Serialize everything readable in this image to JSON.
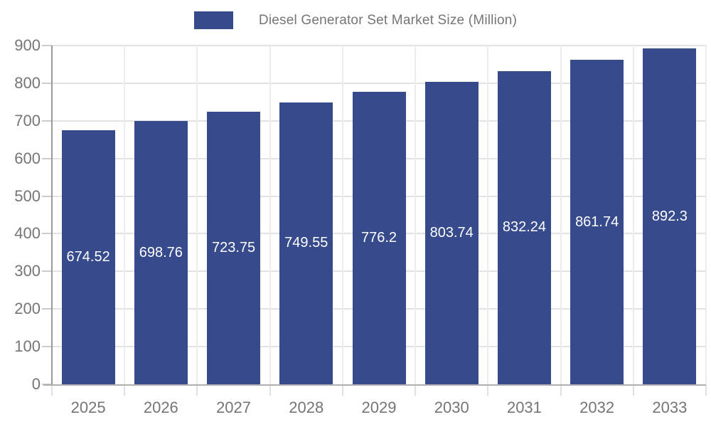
{
  "legend": {
    "label": "Diesel Generator Set Market Size (Million)"
  },
  "chart_data": {
    "type": "bar",
    "title": "Diesel Generator Set Market Size (Million)",
    "categories": [
      "2025",
      "2026",
      "2027",
      "2028",
      "2029",
      "2030",
      "2031",
      "2032",
      "2033"
    ],
    "values": [
      674.52,
      698.76,
      723.75,
      749.55,
      776.2,
      803.74,
      832.24,
      861.74,
      892.3
    ],
    "value_labels": [
      "674.52",
      "698.76",
      "723.75",
      "749.55",
      "776.2",
      "803.74",
      "832.24",
      "861.74",
      "892.3"
    ],
    "xlabel": "",
    "ylabel": "",
    "ylim": [
      0,
      900
    ],
    "yticks": [
      0,
      100,
      200,
      300,
      400,
      500,
      600,
      700,
      800,
      900
    ],
    "grid": true,
    "legend_position": "top",
    "colors": {
      "bar": "#364A8C",
      "h_grid": "#e3e3e3",
      "v_grid": "#ececec",
      "y_axis_line": "#999999",
      "x_axis_line": "#b0b0b0",
      "y_tick": "#cccccc",
      "x_tick": "#e0e0e0",
      "axis_text": "#757575",
      "value_label": "#ffffff",
      "background": "#ffffff"
    }
  }
}
